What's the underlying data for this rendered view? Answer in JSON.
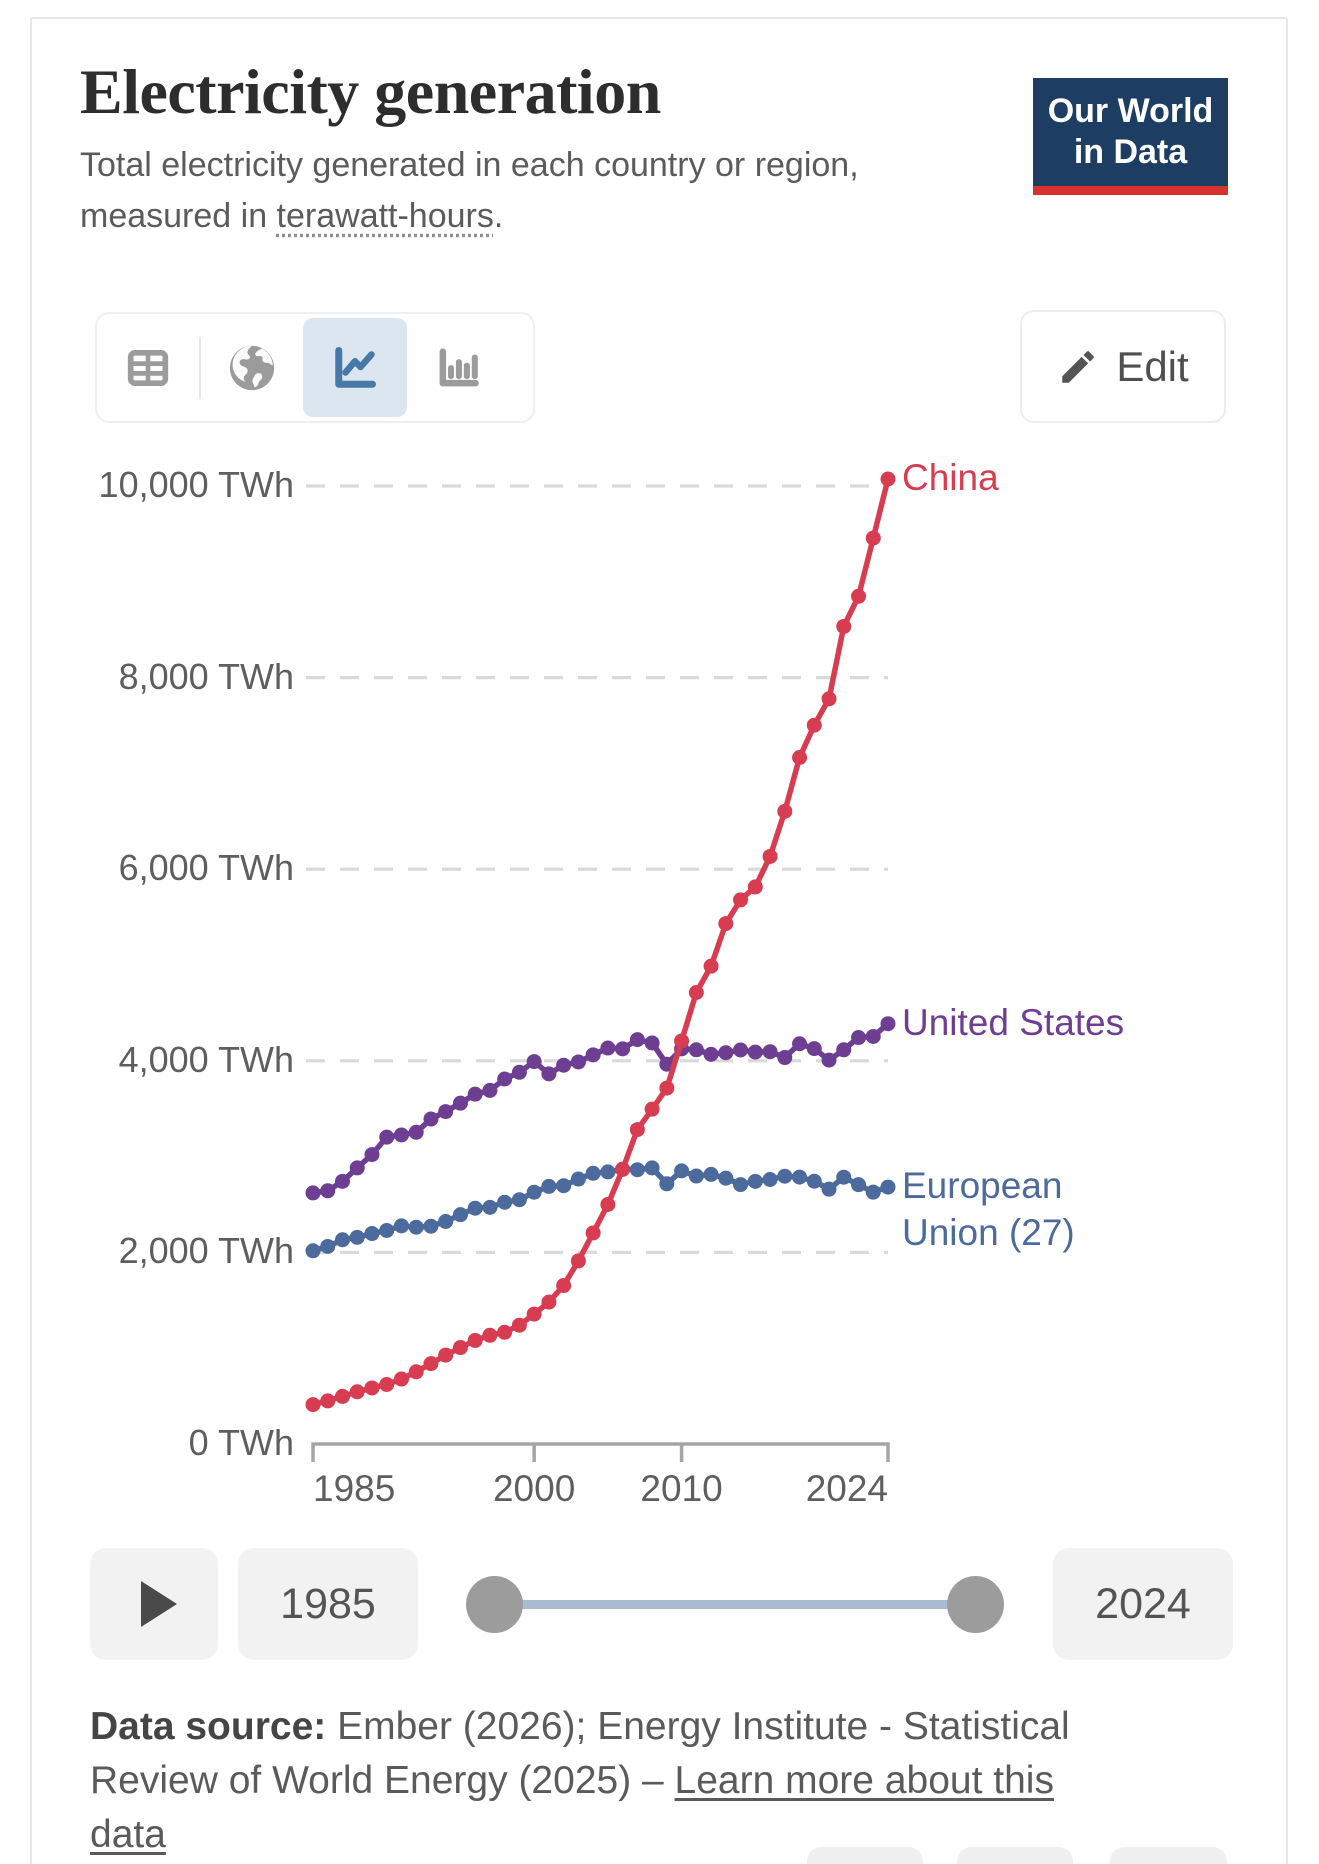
{
  "header": {
    "title": "Electricity generation",
    "subtitle_before": "Total electricity generated in each country or region, measured in ",
    "subtitle_term": "terawatt-hours",
    "subtitle_after": ".",
    "logo_line1": "Our World",
    "logo_line2": "in Data",
    "logo_bg": "#1d3d63",
    "logo_accent": "#d7312e"
  },
  "toolbar": {
    "icons": [
      "table-icon",
      "globe-icon",
      "line-chart-icon",
      "bar-chart-icon"
    ],
    "selected": "line-chart-icon",
    "selected_bg": "#dbe6f1",
    "edit_label": "Edit"
  },
  "timeline": {
    "play": "play-icon",
    "start_year": "1985",
    "end_year": "2024"
  },
  "footer": {
    "source_label": "Data source:",
    "source_text": " Ember (2026); Energy Institute - Statistical Review of World Energy (2025) – ",
    "link_text": "Learn more about this data"
  },
  "chart_data": {
    "type": "line",
    "title": "Electricity generation",
    "unit": "TWh",
    "x": [
      1985,
      1986,
      1987,
      1988,
      1989,
      1990,
      1991,
      1992,
      1993,
      1994,
      1995,
      1996,
      1997,
      1998,
      1999,
      2000,
      2001,
      2002,
      2003,
      2004,
      2005,
      2006,
      2007,
      2008,
      2009,
      2010,
      2011,
      2012,
      2013,
      2014,
      2015,
      2016,
      2017,
      2018,
      2019,
      2020,
      2021,
      2022,
      2023,
      2024
    ],
    "series": [
      {
        "name": "China",
        "color": "#d73c50",
        "values": [
          411,
          450,
          497,
          545,
          585,
          621,
          678,
          754,
          839,
          928,
          1007,
          1081,
          1135,
          1166,
          1240,
          1356,
          1481,
          1654,
          1911,
          2203,
          2500,
          2866,
          3282,
          3495,
          3715,
          4207,
          4713,
          4988,
          5432,
          5680,
          5815,
          6133,
          6604,
          7166,
          7503,
          7779,
          8534,
          8849,
          9456,
          10073
        ]
      },
      {
        "name": "United States",
        "color": "#6d3e91",
        "values": [
          2621,
          2643,
          2742,
          2882,
          3021,
          3203,
          3226,
          3254,
          3392,
          3470,
          3558,
          3652,
          3691,
          3810,
          3880,
          3992,
          3864,
          3954,
          3988,
          4062,
          4133,
          4125,
          4221,
          4186,
          3964,
          4125,
          4115,
          4067,
          4084,
          4113,
          4091,
          4095,
          4034,
          4178,
          4127,
          4007,
          4115,
          4243,
          4254,
          4387
        ]
      },
      {
        "name": "European Union (27)",
        "color": "#4c6a9c",
        "values": [
          2017,
          2062,
          2132,
          2157,
          2197,
          2229,
          2277,
          2263,
          2273,
          2323,
          2394,
          2461,
          2470,
          2524,
          2550,
          2628,
          2689,
          2696,
          2766,
          2826,
          2840,
          2869,
          2863,
          2882,
          2716,
          2851,
          2797,
          2814,
          2775,
          2708,
          2742,
          2761,
          2795,
          2786,
          2743,
          2660,
          2785,
          2707,
          2629,
          2682
        ]
      }
    ],
    "yticks": [
      0,
      2000,
      4000,
      6000,
      8000,
      10000
    ],
    "ytick_labels": [
      "0 TWh",
      "2,000 TWh",
      "4,000 TWh",
      "6,000 TWh",
      "8,000 TWh",
      "10,000 TWh"
    ],
    "xticks": [
      1985,
      2000,
      2010,
      2024
    ],
    "xlim": [
      1985,
      2024
    ],
    "ylim": [
      0,
      10500
    ],
    "grid": "horizontal-dashed",
    "grid_color": "#d9d9d9",
    "axis_color": "#a5a5a5",
    "legend_position": "right-of-line-end"
  }
}
